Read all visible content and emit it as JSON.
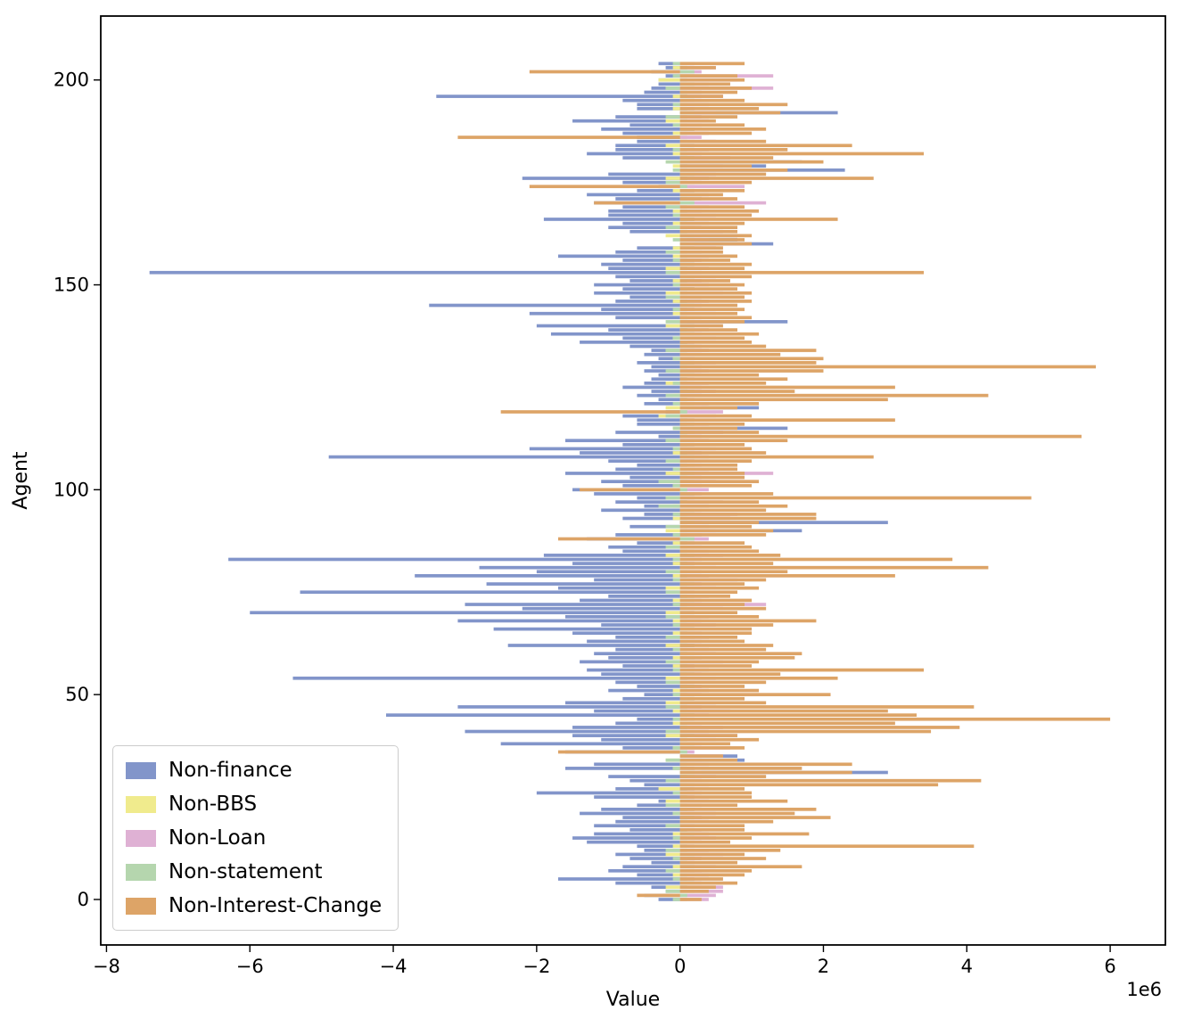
{
  "chart_data": {
    "type": "barh",
    "title": "",
    "xlabel": "Value",
    "ylabel": "Agent",
    "offset_label": "1e6",
    "values_unit": "1e6",
    "xticks": [
      -8,
      -6,
      -4,
      -2,
      0,
      2,
      4,
      6
    ],
    "yticks": [
      0,
      50,
      100,
      150,
      200
    ],
    "xlim": [
      -8.08,
      6.77
    ],
    "ylim": [
      -11.1,
      215.6
    ],
    "bar_height": 0.8,
    "grid": false,
    "legend_position": "lower left",
    "series": [
      {
        "name": "Non-finance",
        "color": "#8295ca",
        "values": [
          -0.3,
          -0.5,
          -0.2,
          -0.4,
          -0.9,
          -1.7,
          -0.6,
          -1.0,
          -0.8,
          -0.4,
          -0.7,
          -0.9,
          -0.5,
          -0.6,
          -1.3,
          -1.5,
          -1.2,
          -0.7,
          -1.2,
          -0.9,
          -0.8,
          -1.4,
          -1.1,
          -0.6,
          -0.3,
          -1.2,
          -2.0,
          -0.9,
          -0.5,
          -0.7,
          -1.0,
          2.9,
          -1.6,
          -1.2,
          0.9,
          0.8,
          -1.6,
          -0.8,
          -2.5,
          -1.1,
          -1.5,
          -3.0,
          -1.5,
          -0.9,
          -0.6,
          -4.1,
          -1.2,
          -3.1,
          -1.6,
          -0.8,
          -0.5,
          -1.0,
          -0.6,
          -0.9,
          -5.4,
          -1.1,
          -1.3,
          -0.8,
          -1.4,
          -1.0,
          -1.2,
          -0.9,
          -2.4,
          -1.3,
          -0.9,
          -1.5,
          -2.6,
          -1.1,
          -3.1,
          -1.6,
          -6.0,
          -2.2,
          -3.0,
          -1.4,
          -1.0,
          -5.3,
          -1.7,
          -2.7,
          -1.2,
          -3.7,
          -2.0,
          -2.8,
          -1.5,
          -6.3,
          -1.9,
          -0.8,
          -1.0,
          -0.6,
          -1.3,
          -0.9,
          1.7,
          -0.7,
          2.9,
          -0.8,
          -0.5,
          -1.1,
          -0.5,
          -0.9,
          -0.6,
          -1.2,
          -1.5,
          -0.8,
          -1.1,
          -0.7,
          -1.6,
          -0.9,
          -0.6,
          -1.0,
          -4.9,
          -1.4,
          -2.1,
          -0.8,
          -1.6,
          -0.3,
          -0.9,
          1.5,
          -0.6,
          -0.6,
          -0.8,
          -0.2,
          1.1,
          -0.5,
          -0.3,
          -0.6,
          -0.4,
          -0.8,
          -0.5,
          -0.4,
          -0.3,
          -0.5,
          -0.4,
          -0.6,
          -0.3,
          -0.5,
          -0.4,
          -0.7,
          -1.4,
          -0.8,
          -1.8,
          -1.0,
          -2.0,
          1.5,
          -0.9,
          -2.1,
          -1.1,
          -3.5,
          -0.9,
          -0.7,
          -1.2,
          -0.8,
          -1.2,
          -0.7,
          -0.9,
          -7.4,
          -1.0,
          -1.1,
          -0.8,
          -1.7,
          -0.9,
          -0.6,
          1.3,
          0.8,
          0.8,
          -0.7,
          -1.0,
          -0.8,
          -1.9,
          -1.0,
          -1.0,
          -0.8,
          -1.2,
          -0.9,
          -1.3,
          -0.6,
          -0.3,
          -0.8,
          -2.2,
          -1.0,
          2.3,
          1.2,
          1.7,
          -0.8,
          -1.3,
          -0.9,
          -0.9,
          -0.6,
          -0.6,
          -0.8,
          -1.1,
          -0.7,
          -1.5,
          -0.9,
          2.2,
          -0.6,
          -0.6,
          -0.8,
          -3.4,
          -0.5,
          -0.4,
          -0.3,
          -0.3,
          -0.2,
          -0.4,
          -0.2,
          -0.3
        ]
      },
      {
        "name": "Non-BBS",
        "color": "#f0eb8d",
        "values": [
          0.1,
          -0.1,
          0.2,
          -0.2,
          0.1,
          0.1,
          -0.1,
          0.2,
          -0.1,
          0.1,
          0.2,
          -0.2,
          0.1,
          -0.1,
          0.2,
          0.1,
          -0.1,
          0.1,
          -0.2,
          0.2,
          0.1,
          -0.1,
          0.2,
          0.1,
          -0.2,
          0.1,
          0.2,
          -0.3,
          0.1,
          -0.1,
          0.2,
          0.1,
          -0.1,
          0.2,
          -0.2,
          0.1,
          0.1,
          -0.1,
          0.2,
          0.1,
          -0.2,
          0.1,
          0.2,
          -0.1,
          0.1,
          0.2,
          -0.1,
          0.1,
          -0.2,
          0.2,
          0.1,
          -0.1,
          0.2,
          0.1,
          -0.2,
          0.1,
          0.2,
          -0.1,
          0.1,
          -0.1,
          0.2,
          0.1,
          -0.2,
          0.1,
          0.2,
          -0.1,
          0.1,
          0.2,
          -0.1,
          0.1,
          -0.2,
          0.2,
          0.1,
          -0.1,
          0.2,
          0.1,
          -0.2,
          0.1,
          0.2,
          -0.1,
          0.1,
          0.2,
          -0.1,
          0.1,
          -0.2,
          0.2,
          0.1,
          -0.1,
          0.2,
          0.1,
          -0.2,
          0.1,
          0.2,
          -0.1,
          0.1,
          0.2,
          -0.1,
          0.1,
          -0.2,
          0.2,
          0.1,
          -0.1,
          0.2,
          0.1,
          -0.2,
          0.1,
          0.2,
          -0.1,
          0.1,
          -0.1,
          0.2,
          0.1,
          -0.2,
          0.1,
          0.2,
          -0.1,
          0.1,
          0.2,
          -0.3,
          0.1,
          -0.2,
          0.2,
          0.1,
          -0.1,
          0.2,
          0.1,
          -0.2,
          0.1,
          0.2,
          -0.1,
          0.1,
          0.2,
          -0.1,
          0.1,
          -0.2,
          0.2,
          0.1,
          -0.1,
          0.2,
          0.1,
          -0.2,
          0.1,
          0.2,
          -0.1,
          0.1,
          0.2,
          -0.1,
          0.1,
          -0.2,
          0.2,
          0.1,
          -0.1,
          0.2,
          0.1,
          -0.2,
          0.1,
          0.2,
          -0.1,
          0.1,
          -0.1,
          0.2,
          0.1,
          -0.2,
          0.1,
          0.2,
          -0.1,
          0.1,
          0.2,
          -0.1,
          0.1,
          -0.2,
          0.2,
          0.1,
          -0.1,
          0.2,
          0.1,
          -0.2,
          0.1,
          0.2,
          -0.1,
          0.1,
          0.2,
          -0.1,
          0.1,
          -0.2,
          0.2,
          0.1,
          -0.1,
          0.2,
          0.1,
          -0.2,
          0.1,
          0.2,
          -0.1,
          0.1,
          0.2,
          -0.1,
          0.1,
          -0.2,
          0.2,
          -0.3,
          0.2,
          0.1,
          -0.1,
          0.1
        ]
      },
      {
        "name": "Non-Loan",
        "color": "#dfb1d4",
        "values": [
          0.4,
          0.5,
          0.6,
          0.6,
          0.3,
          0.2,
          0.4,
          0.3,
          0.5,
          0.2,
          0.3,
          0.6,
          0.4,
          0.2,
          0.3,
          0.5,
          0.4,
          0.3,
          0.2,
          0.4,
          0.3,
          0.5,
          0.2,
          0.3,
          0.4,
          0.2,
          0.3,
          0.2,
          0.4,
          0.3,
          0.5,
          0.3,
          0.2,
          0.4,
          0.3,
          0.6,
          0.2,
          0.7,
          0.3,
          0.5,
          0.8,
          0.4,
          0.6,
          0.3,
          0.2,
          0.4,
          0.7,
          0.3,
          0.5,
          0.2,
          0.3,
          0.4,
          0.3,
          0.2,
          0.5,
          0.3,
          0.4,
          0.2,
          0.6,
          0.3,
          0.5,
          0.4,
          0.2,
          0.3,
          0.4,
          0.3,
          0.2,
          0.5,
          0.3,
          0.4,
          0.2,
          0.6,
          1.2,
          0.3,
          0.4,
          0.2,
          0.5,
          0.3,
          0.8,
          0.4,
          0.3,
          0.5,
          0.2,
          0.3,
          0.6,
          0.4,
          0.3,
          0.2,
          0.4,
          0.3,
          0.5,
          0.4,
          0.3,
          0.7,
          0.8,
          0.3,
          0.4,
          0.6,
          0.2,
          0.3,
          0.4,
          0.3,
          0.5,
          0.3,
          1.3,
          0.4,
          0.3,
          0.2,
          0.4,
          0.3,
          0.5,
          0.2,
          0.4,
          0.3,
          0.6,
          0.3,
          0.4,
          0.2,
          0.5,
          0.6,
          0.3,
          0.4,
          0.2,
          0.3,
          0.5,
          0.3,
          0.4,
          0.2,
          0.3,
          0.4,
          0.3,
          0.5,
          0.2,
          0.3,
          0.4,
          0.3,
          0.2,
          0.5,
          0.3,
          0.4,
          0.2,
          0.4,
          0.3,
          0.5,
          0.2,
          0.3,
          0.4,
          0.3,
          0.6,
          0.2,
          0.4,
          0.3,
          0.5,
          0.3,
          0.4,
          0.2,
          0.3,
          0.4,
          0.3,
          0.5,
          0.2,
          0.4,
          0.3,
          0.6,
          0.3,
          0.4,
          0.2,
          0.5,
          0.3,
          0.4,
          1.2,
          0.3,
          0.4,
          0.2,
          0.9,
          0.3,
          0.4,
          0.5,
          0.3,
          0.6,
          0.4,
          0.7,
          0.3,
          0.4,
          0.2,
          0.5,
          0.3,
          0.4,
          0.2,
          0.3,
          0.4,
          0.3,
          0.5,
          0.2,
          0.4,
          0.3,
          0.6,
          0.3,
          1.3,
          0.4,
          0.8,
          1.3,
          0.3,
          0.5,
          0.2
        ]
      },
      {
        "name": "Non-statement",
        "color": "#b5d6ae",
        "values": [
          -0.1,
          0.1,
          -0.2,
          0.1,
          0.2,
          -0.1,
          0.1,
          -0.2,
          0.2,
          0.1,
          -0.1,
          0.2,
          -0.2,
          0.1,
          0.1,
          -0.1,
          0.2,
          0.1,
          -0.2,
          0.1,
          0.2,
          -0.1,
          0.1,
          -0.2,
          0.2,
          0.1,
          -0.1,
          0.1,
          0.2,
          -0.2,
          0.1,
          0.2,
          -0.1,
          0.1,
          -0.2,
          0.2,
          0.1,
          -0.1,
          0.2,
          0.1,
          0.2,
          -0.2,
          0.1,
          0.1,
          -0.1,
          0.2,
          0.1,
          -0.2,
          0.1,
          0.2,
          -0.1,
          0.1,
          0.2,
          -0.2,
          0.1,
          0.2,
          -0.1,
          0.1,
          -0.2,
          0.2,
          0.1,
          -0.1,
          0.2,
          0.1,
          -0.2,
          0.1,
          0.2,
          -0.1,
          0.1,
          -0.2,
          0.2,
          0.1,
          -0.1,
          0.2,
          0.1,
          -0.2,
          0.1,
          0.2,
          -0.1,
          0.1,
          -0.2,
          0.2,
          0.1,
          -0.1,
          0.2,
          0.1,
          -0.2,
          0.1,
          0.2,
          -0.1,
          0.1,
          -0.2,
          0.2,
          0.1,
          -0.1,
          0.2,
          -0.3,
          0.1,
          -0.2,
          0.2,
          0.1,
          -0.1,
          -0.3,
          0.1,
          0.2,
          -0.1,
          0.1,
          -0.2,
          0.2,
          0.1,
          -0.1,
          0.2,
          -0.2,
          0.1,
          0.1,
          -0.1,
          0.2,
          0.1,
          -0.2,
          0.1,
          0.2,
          -0.1,
          0.1,
          -0.2,
          0.2,
          0.1,
          -0.1,
          0.1,
          0.2,
          -0.2,
          0.1,
          0.2,
          -0.1,
          0.1,
          -0.2,
          0.2,
          0.1,
          -0.1,
          0.2,
          0.1,
          0.2,
          -0.2,
          0.1,
          0.1,
          -0.1,
          0.2,
          0.1,
          -0.2,
          0.1,
          0.2,
          -0.1,
          0.1,
          0.2,
          -0.2,
          0.1,
          0.2,
          -0.1,
          0.1,
          -0.2,
          0.2,
          0.1,
          -0.1,
          0.2,
          0.1,
          -0.2,
          0.1,
          0.2,
          -0.1,
          0.1,
          -0.2,
          0.2,
          0.1,
          0.3,
          0.2,
          0.1,
          -0.2,
          0.1,
          0.2,
          -0.1,
          0.1,
          -0.2,
          0.2,
          0.1,
          -0.1,
          0.2,
          0.1,
          -0.2,
          0.1,
          0.2,
          -0.1,
          0.1,
          -0.2,
          0.2,
          0.1,
          -0.1,
          0.2,
          0.1,
          0.1,
          -0.2,
          0.2,
          0.1,
          -0.1,
          0.2,
          0.1,
          -0.1
        ]
      },
      {
        "name": "Non-Interest-Change",
        "color": "#dda467",
        "values": [
          0.3,
          -0.6,
          0.4,
          0.5,
          0.8,
          0.6,
          0.9,
          1.0,
          1.7,
          0.8,
          1.2,
          0.9,
          1.4,
          4.1,
          0.7,
          1.0,
          1.8,
          0.9,
          0.9,
          1.3,
          2.1,
          1.6,
          1.9,
          0.8,
          1.5,
          1.0,
          1.0,
          0.9,
          3.6,
          4.2,
          1.2,
          2.4,
          1.7,
          2.4,
          0.8,
          0.6,
          -1.7,
          0.9,
          0.7,
          1.1,
          0.8,
          3.5,
          3.9,
          3.0,
          6.0,
          3.3,
          2.9,
          4.1,
          1.2,
          0.9,
          2.1,
          1.1,
          0.9,
          1.2,
          2.2,
          1.4,
          3.4,
          1.0,
          1.1,
          1.6,
          1.7,
          1.2,
          1.3,
          0.9,
          0.8,
          1.0,
          1.0,
          1.3,
          1.9,
          1.1,
          0.8,
          1.2,
          0.9,
          1.0,
          0.7,
          0.8,
          1.1,
          0.9,
          1.2,
          3.0,
          1.5,
          4.3,
          1.3,
          3.8,
          1.4,
          1.1,
          1.0,
          0.9,
          -1.7,
          1.2,
          1.3,
          1.0,
          1.1,
          1.9,
          1.9,
          1.2,
          1.5,
          1.1,
          4.9,
          1.3,
          -1.4,
          1.0,
          1.1,
          0.9,
          0.9,
          0.8,
          0.8,
          1.0,
          2.7,
          1.2,
          1.0,
          0.9,
          1.5,
          5.6,
          1.1,
          0.8,
          0.9,
          3.0,
          1.0,
          -2.5,
          0.8,
          1.1,
          2.9,
          4.3,
          1.6,
          3.0,
          1.2,
          1.5,
          1.1,
          2.0,
          5.8,
          1.9,
          2.0,
          1.4,
          1.9,
          1.2,
          1.0,
          0.9,
          1.1,
          0.8,
          0.6,
          0.9,
          1.0,
          0.8,
          0.9,
          0.8,
          1.0,
          0.9,
          1.0,
          0.8,
          0.9,
          0.7,
          1.0,
          3.4,
          0.9,
          1.0,
          0.7,
          0.8,
          0.6,
          0.6,
          1.0,
          0.9,
          1.0,
          0.8,
          0.8,
          0.9,
          2.2,
          1.0,
          1.1,
          0.9,
          -1.2,
          0.8,
          0.6,
          0.9,
          -2.1,
          1.0,
          2.7,
          1.2,
          1.5,
          1.0,
          2.0,
          1.3,
          3.4,
          1.5,
          2.4,
          1.2,
          -3.1,
          1.0,
          1.2,
          0.9,
          0.5,
          0.8,
          1.4,
          1.1,
          1.5,
          0.9,
          0.6,
          0.8,
          1.0,
          0.7,
          0.9,
          0.8,
          -2.1,
          0.5,
          0.9
        ]
      }
    ]
  }
}
